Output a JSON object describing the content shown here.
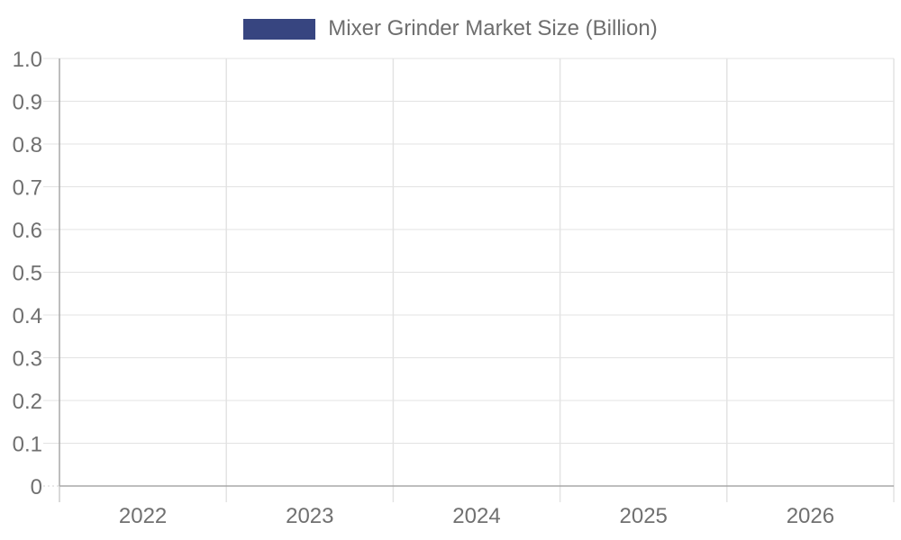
{
  "chart_data": {
    "type": "bar",
    "title": "",
    "xlabel": "",
    "ylabel": "",
    "legend_position": "top",
    "categories": [
      "2022",
      "2023",
      "2024",
      "2025",
      "2026"
    ],
    "series": [
      {
        "name": "Mixer Grinder Market Size (Billion)",
        "color": "#374580",
        "values": []
      }
    ],
    "ylim": [
      0,
      1
    ],
    "ytick_step": 0.1,
    "ytick_labels": [
      "0",
      "0.1",
      "0.2",
      "0.3",
      "0.4",
      "0.5",
      "0.6",
      "0.7",
      "0.8",
      "0.9",
      "1.0"
    ],
    "grid": true,
    "style": {
      "grid_color": "#e3e3e3",
      "axis_color": "#a8a8a8",
      "axis_tick_color": "#cccccc",
      "zero_tick_color": "#d0d0d0",
      "label_color": "#707070",
      "legend_text_color": "#6e6e6e",
      "background": "#ffffff"
    }
  }
}
